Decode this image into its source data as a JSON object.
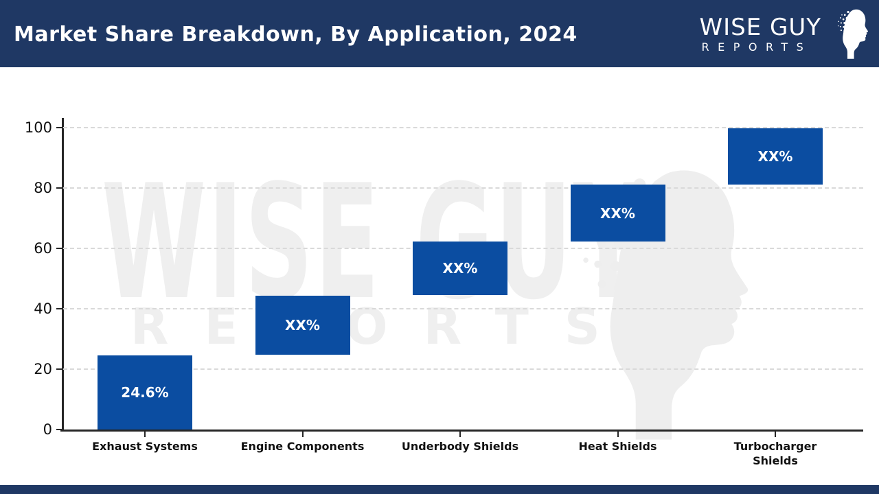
{
  "header": {
    "title": "Market Share Breakdown, By Application, 2024"
  },
  "logo": {
    "wordmark": "WISE GUY",
    "subtext": "REPORTS",
    "icon": "dotted-head-profile-icon"
  },
  "watermark": {
    "wordmark": "WISE GUY",
    "subtext": "REPORTS"
  },
  "colors": {
    "header_bg": "#1f3864",
    "footer_bg": "#1f3864",
    "bar": "#0b4da1",
    "bar_label_text": "#ffffff",
    "grid": "#d9d9d9",
    "axis": "#262626",
    "tick_text": "#111111",
    "watermark": "#efefef"
  },
  "chart_data": {
    "type": "bar",
    "variant": "waterfall",
    "title": "Market Share Breakdown, By Application, 2024",
    "xlabel": "",
    "ylabel": "",
    "ylim": [
      0,
      105
    ],
    "yticks": [
      0,
      20,
      40,
      60,
      80,
      100
    ],
    "grid": "horizontal-dashed",
    "legend": "none",
    "categories": [
      "Exhaust Systems",
      "Engine Components",
      "Underbody Shields",
      "Heat Shields",
      "Turbocharger Shields"
    ],
    "category_label_lines": [
      [
        "Exhaust Systems"
      ],
      [
        "Engine Components"
      ],
      [
        "Underbody Shields"
      ],
      [
        "Heat Shields"
      ],
      [
        "Turbocharger",
        "Shields"
      ]
    ],
    "segments": [
      {
        "category": "Exhaust Systems",
        "start": 0,
        "end": 24.6,
        "label": "24.6%"
      },
      {
        "category": "Engine Components",
        "start": 24.7,
        "end": 44.4,
        "label": "XX%"
      },
      {
        "category": "Underbody Shields",
        "start": 44.6,
        "end": 62.2,
        "label": "XX%"
      },
      {
        "category": "Heat Shields",
        "start": 62.2,
        "end": 81.1,
        "label": "XX%"
      },
      {
        "category": "Turbocharger Shields",
        "start": 81.2,
        "end": 99.8,
        "label": "XX%"
      }
    ]
  }
}
